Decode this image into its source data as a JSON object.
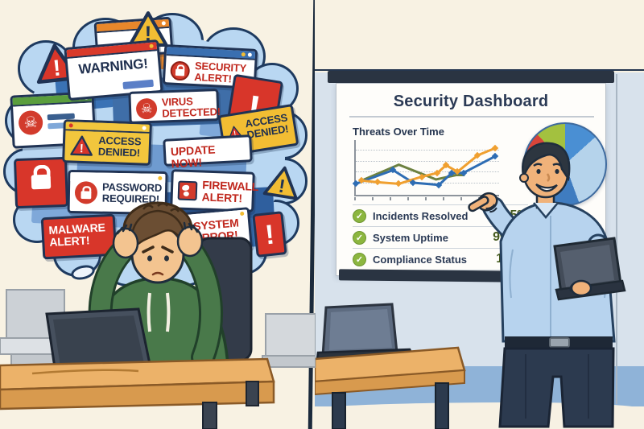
{
  "left_scene": {
    "popups": {
      "warning": "WARNING!",
      "security_alert": "SECURITY ALERT!",
      "virus_detected": "VIRUS DETECTED!",
      "access_denied_left": "ACCESS DENIED!",
      "access_denied_right": "ACCESS DENIED!",
      "update_now": "UPDATE NOW!",
      "password_required": "PASSWORD REQUIRED!",
      "firewall_alert": "FIREWALL ALERT!",
      "malware_alert": "MALWARE ALERT!",
      "system_error": "SYSTEM ERROR!"
    },
    "glyphs": {
      "exclamation": "!",
      "skull": "☠",
      "error_x": "×"
    }
  },
  "right_scene": {
    "board": {
      "title": "Security Dashboard",
      "chart_title": "Threats Over Time",
      "metrics": [
        {
          "label": "Incidents Resolved",
          "value": "95%"
        },
        {
          "label": "System Uptime",
          "value": "99.9%"
        },
        {
          "label": "Compliance Status",
          "value": "100%"
        }
      ]
    },
    "icons": {
      "check": "✓"
    }
  },
  "colors": {
    "alert_red": "#d23b2c",
    "alert_yellow": "#f2bd33",
    "alert_orange": "#e8872b",
    "outline_navy": "#203354",
    "bubble_blue": "#b9d7f2",
    "check_green": "#8cb63f",
    "metric_value_green": "#445a1e",
    "board_title_navy": "#2b3a55"
  },
  "chart_data": [
    {
      "type": "line",
      "title": "Threats Over Time",
      "xlabel": "",
      "ylabel": "",
      "axis_tick_labels": false,
      "gridlines": 4,
      "legend": false,
      "series": [
        {
          "name": "threats-green",
          "color": "#6d8140",
          "marker": "none",
          "points": [
            [
              5,
              27
            ],
            [
              30,
              55
            ],
            [
              56,
              28
            ],
            [
              70,
              36
            ],
            [
              76,
              36
            ]
          ]
        },
        {
          "name": "threats-blue",
          "color": "#2e6db4",
          "marker": "diamond",
          "points": [
            [
              0,
              20
            ],
            [
              26,
              45
            ],
            [
              40,
              22
            ],
            [
              58,
              18
            ],
            [
              67,
              40
            ],
            [
              75,
              40
            ],
            [
              97,
              70
            ]
          ]
        },
        {
          "name": "threats-orange",
          "color": "#f0a030",
          "marker": "diamond",
          "points": [
            [
              4,
              26
            ],
            [
              15,
              23
            ],
            [
              30,
              20
            ],
            [
              46,
              33
            ],
            [
              57,
              40
            ],
            [
              63,
              54
            ],
            [
              71,
              42
            ],
            [
              85,
              72
            ],
            [
              97,
              85
            ]
          ]
        }
      ]
    },
    {
      "type": "pie",
      "title": "",
      "slices": [
        {
          "name": "slice-medium-blue",
          "color": "#4a8fd3",
          "degrees": 48
        },
        {
          "name": "slice-light-blue",
          "color": "#b5d3eb",
          "degrees": 112
        },
        {
          "name": "slice-deep-blue",
          "color": "#3f7cc0",
          "degrees": 75
        },
        {
          "name": "slice-red",
          "color": "#d8453a",
          "degrees": 82
        },
        {
          "name": "slice-green",
          "color": "#a3c13f",
          "degrees": 43
        }
      ]
    }
  ]
}
